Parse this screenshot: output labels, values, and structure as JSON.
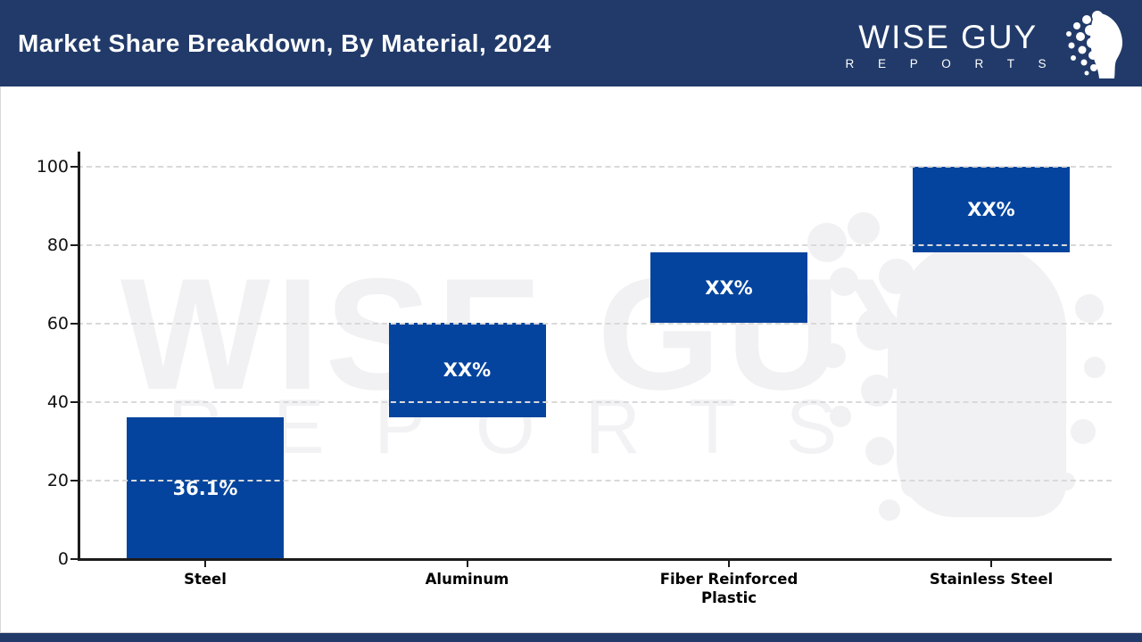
{
  "header": {
    "title": "Market Share Breakdown, By Material, 2024",
    "logo": {
      "line1": "WISE GUY",
      "line2": "R E P O R T S"
    }
  },
  "watermark": {
    "line1": "WISE GUY",
    "line2": "R O P O R T S",
    "text_top": "WISE GUY",
    "text_bottom": "REPORTS"
  },
  "chart_data": {
    "type": "bar",
    "subtype": "waterfall",
    "title": "Market Share Breakdown, By Material, 2024",
    "xlabel": "",
    "ylabel": "",
    "ylim": [
      0,
      100
    ],
    "yticks": [
      0,
      20,
      40,
      60,
      80,
      100
    ],
    "grid": "dashed-horizontal",
    "legend": "none",
    "categories": [
      "Steel",
      "Aluminum",
      "Fiber Reinforced Plastic",
      "Stainless Steel"
    ],
    "segments": [
      {
        "category": "Steel",
        "start": 0,
        "end": 36.1,
        "label": "36.1%"
      },
      {
        "category": "Aluminum",
        "start": 36.1,
        "end": 60.2,
        "label": "XX%"
      },
      {
        "category": "Fiber Reinforced Plastic",
        "start": 60.2,
        "end": 78.2,
        "label": "XX%"
      },
      {
        "category": "Stainless Steel",
        "start": 78.2,
        "end": 100,
        "label": "XX%"
      }
    ],
    "bar_color": "#04449e",
    "bar_label_color": "#ffffff"
  },
  "colors": {
    "header_bg": "#213a69",
    "footer_bg": "#213a69",
    "bar": "#04449e",
    "gridline": "#d9d9d9",
    "axis": "#1c1c1c",
    "watermark": "#f1f1f3"
  }
}
